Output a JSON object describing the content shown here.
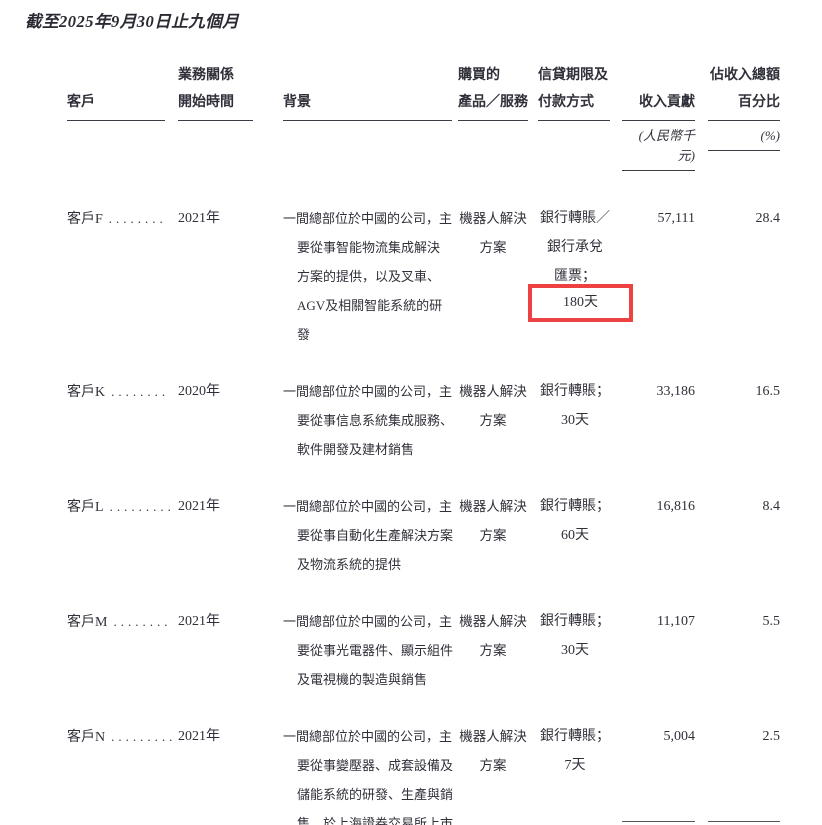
{
  "title": "截至2025年9月30日止九個月",
  "annotation": {
    "highlight_color": "#ee4141",
    "highlighted_text": "180天"
  },
  "table": {
    "headers": {
      "customer": "客戶",
      "relationship_line1": "業務關係",
      "relationship_line2": "開始時間",
      "background": "背景",
      "product_line1": "購買的",
      "product_line2": "產品／服務",
      "credit_line1": "信貸期限及",
      "credit_line2": "付款方式",
      "revenue": "收入貢獻",
      "revenue_unit": "(人民幣千元)",
      "percent_line1": "佔收入總額",
      "percent_line2": "百分比",
      "percent_unit": "(%)"
    },
    "rows": [
      {
        "customer": "客戶F",
        "leader": "........",
        "start_year": "2021年",
        "background": [
          "一間總部位於中國的公司，主",
          "要從事智能物流集成解決",
          "方案的提供，以及叉車、",
          "AGV及相關智能系統的研",
          "發"
        ],
        "product": [
          "機器人解決",
          "方案"
        ],
        "credit": [
          "銀行轉賬／",
          "銀行承兌",
          "匯票；"
        ],
        "credit_term": "180天",
        "revenue": "57,111",
        "percent": "28.4"
      },
      {
        "customer": "客戶K",
        "leader": "........",
        "start_year": "2020年",
        "background": [
          "一間總部位於中國的公司，主",
          "要從事信息系統集成服務、",
          "軟件開發及建材銷售"
        ],
        "product": [
          "機器人解決",
          "方案"
        ],
        "credit": [
          "銀行轉賬；"
        ],
        "credit_term": "30天",
        "revenue": "33,186",
        "percent": "16.5"
      },
      {
        "customer": "客戶L",
        "leader": ".........",
        "start_year": "2021年",
        "background": [
          "一間總部位於中國的公司，主",
          "要從事自動化生產解決方案",
          "及物流系統的提供"
        ],
        "product": [
          "機器人解決",
          "方案"
        ],
        "credit": [
          "銀行轉賬；"
        ],
        "credit_term": "60天",
        "revenue": "16,816",
        "percent": "8.4"
      },
      {
        "customer": "客戶M",
        "leader": "........",
        "start_year": "2021年",
        "background": [
          "一間總部位於中國的公司，主",
          "要從事光電器件、顯示組件",
          "及電視機的製造與銷售"
        ],
        "product": [
          "機器人解決",
          "方案"
        ],
        "credit": [
          "銀行轉賬；"
        ],
        "credit_term": "30天",
        "revenue": "11,107",
        "percent": "5.5"
      },
      {
        "customer": "客戶N",
        "leader": ".........",
        "start_year": "2021年",
        "background": [
          "一間總部位於中國的公司，主",
          "要從事變壓器、成套設備及",
          "儲能系統的研發、生產與銷",
          "售，於上海證券交易所上市"
        ],
        "product": [
          "機器人解決",
          "方案"
        ],
        "credit": [
          "銀行轉賬；"
        ],
        "credit_term": "7天",
        "revenue": "5,004",
        "percent": "2.5"
      }
    ]
  }
}
